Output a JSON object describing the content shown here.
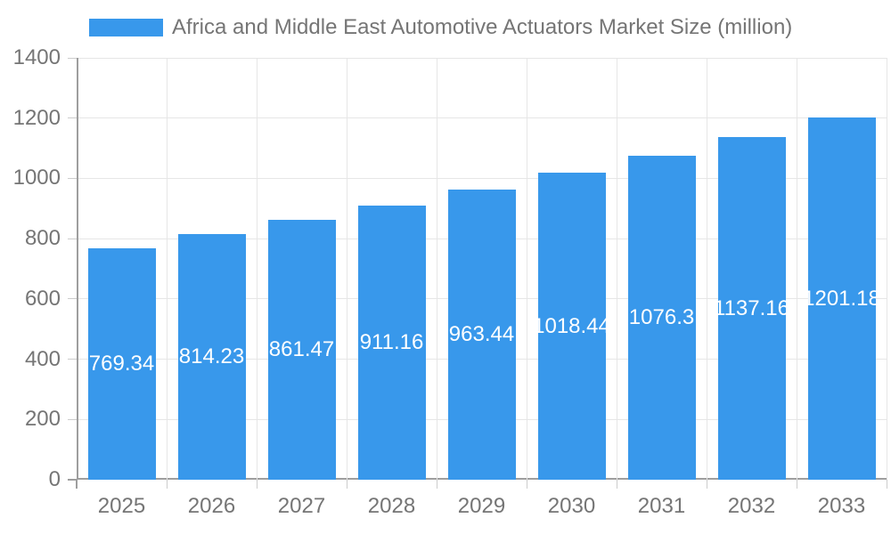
{
  "legend": {
    "label": "Africa and Middle East Automotive Actuators Market Size (million)"
  },
  "chart_data": {
    "type": "bar",
    "title": "Africa and Middle East Automotive Actuators Market Size (million)",
    "categories": [
      "2025",
      "2026",
      "2027",
      "2028",
      "2029",
      "2030",
      "2031",
      "2032",
      "2033"
    ],
    "series": [
      {
        "name": "Africa and Middle East Automotive Actuators Market Size (million)",
        "values": [
          769.34,
          814.23,
          861.47,
          911.16,
          963.44,
          1018.44,
          1076.3,
          1137.16,
          1201.18
        ],
        "labels": [
          "769.34",
          "814.23",
          "861.47",
          "911.16",
          "963.44",
          "1018.44",
          "1076.3",
          "1137.16",
          "1201.18"
        ]
      }
    ],
    "xlabel": "",
    "ylabel": "",
    "ylim": [
      0,
      1400
    ],
    "y_ticks": [
      0,
      200,
      400,
      600,
      800,
      1000,
      1200,
      1400
    ],
    "grid": true,
    "legend_position": "top",
    "colors": {
      "bar": "#3898EB",
      "bar_label": "#FFFFFF",
      "axis_text": "#757575",
      "grid_line": "#E6E6E6",
      "axis_line": "#9E9E9E",
      "tick_mark": "#CCCCCC",
      "background": "#FFFFFF"
    }
  }
}
